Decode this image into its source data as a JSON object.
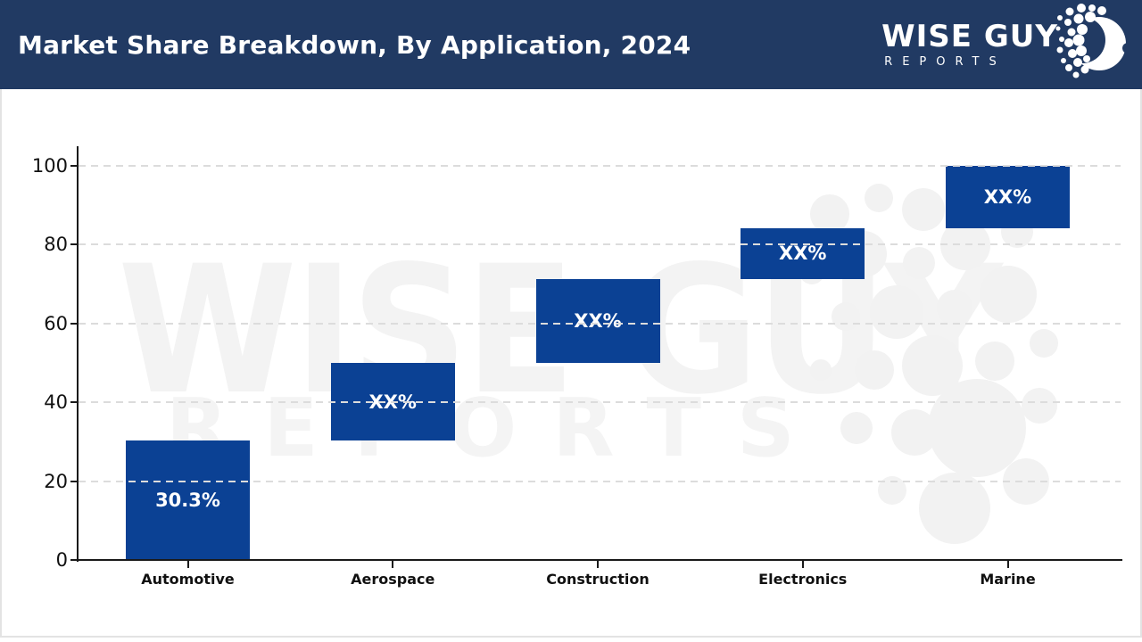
{
  "header": {
    "title": "Market Share Breakdown, By Application, 2024",
    "logo": {
      "primary": "WISE GUY",
      "secondary": "REPORTS"
    }
  },
  "watermark": {
    "primary": "WISE GUY",
    "secondary": "REPORTS"
  },
  "colors": {
    "header_bg": "#213a63",
    "bar": "#0b4194",
    "bar_label": "#ffffff",
    "axis": "#1a1a1a",
    "tick_label": "#111111",
    "gridline": "#dcdcdc",
    "watermark": "#f3f3f3"
  },
  "chart_data": {
    "type": "bar",
    "subtype": "waterfall",
    "title": "Market Share Breakdown, By Application, 2024",
    "xlabel": "",
    "ylabel": "",
    "categories": [
      "Automotive",
      "Aerospace",
      "Construction",
      "Electronics",
      "Marine"
    ],
    "segments": [
      {
        "category": "Automotive",
        "start": 0,
        "end": 30.3,
        "label": "30.3%"
      },
      {
        "category": "Aerospace",
        "start": 30.3,
        "end": 50.0,
        "label": "XX%"
      },
      {
        "category": "Construction",
        "start": 50.0,
        "end": 71.3,
        "label": "XX%"
      },
      {
        "category": "Electronics",
        "start": 71.3,
        "end": 84.2,
        "label": "XX%"
      },
      {
        "category": "Marine",
        "start": 84.2,
        "end": 100.0,
        "label": "XX%"
      }
    ],
    "yticks": [
      0,
      20,
      40,
      60,
      80,
      100
    ],
    "ylim": [
      0,
      105
    ],
    "grid": true,
    "grid_style": "dashed",
    "legend": false
  }
}
